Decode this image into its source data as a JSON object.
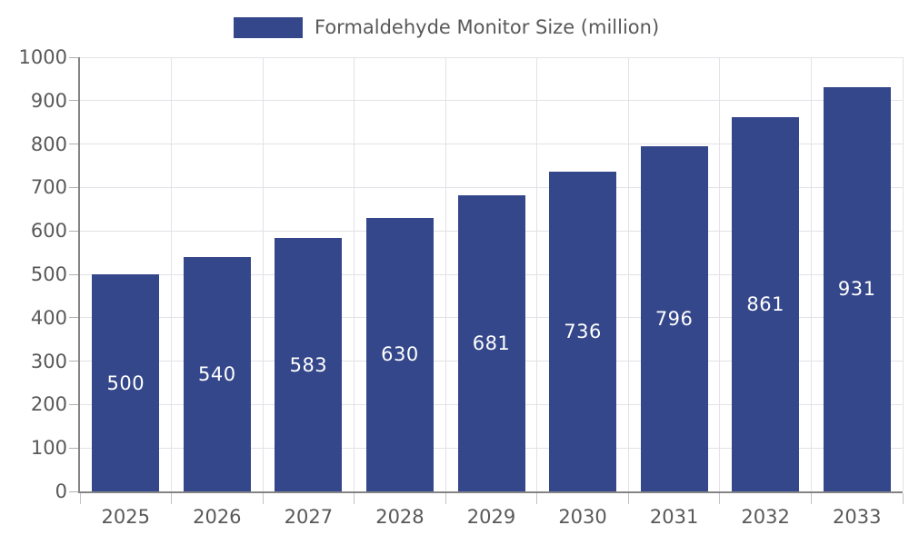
{
  "legend": {
    "label": "Formaldehyde Monitor Size (million)",
    "swatch_color": "#35478b"
  },
  "chart_data": {
    "type": "bar",
    "title": "",
    "xlabel": "",
    "ylabel": "",
    "categories": [
      "2025",
      "2026",
      "2027",
      "2028",
      "2029",
      "2030",
      "2031",
      "2032",
      "2033"
    ],
    "series": [
      {
        "name": "Formaldehyde Monitor Size (million)",
        "values": [
          500,
          540,
          583,
          630,
          681,
          736,
          796,
          861,
          931
        ]
      }
    ],
    "values": [
      500,
      540,
      583,
      630,
      681,
      736,
      796,
      861,
      931
    ],
    "value_labels_shown": true,
    "value_label_position": "center-inside",
    "ylim": [
      0,
      1000
    ],
    "ytick_interval": 100,
    "yticks": [
      0,
      100,
      200,
      300,
      400,
      500,
      600,
      700,
      800,
      900,
      1000
    ],
    "grid": true,
    "legend_position": "top-center",
    "bar_color": "#35478b",
    "value_label_color": "#ffffff",
    "axis_text_color": "#595959",
    "axis_line_color": "#848484",
    "gridline_color": "#e2e2e8"
  }
}
